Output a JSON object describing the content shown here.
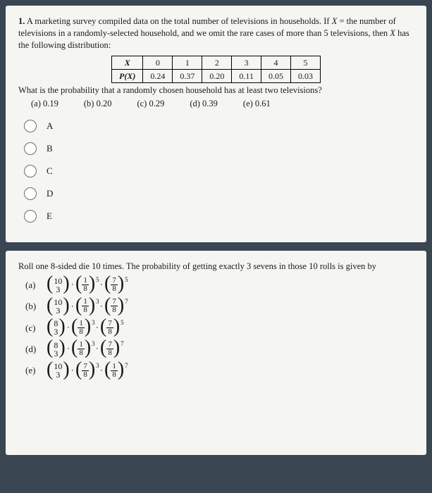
{
  "q1": {
    "number": "1.",
    "prompt_prefix": "A marketing survey compiled data on the total number of televisions in households. If ",
    "var": "X",
    "prompt_mid": " = the number of televisions in a randomly-selected household, and we omit the rare cases of more than 5 televisions, then ",
    "var2": "X",
    "prompt_suffix": " has the following distribution:",
    "table": {
      "row1_label": "X",
      "row2_label": "P(X)",
      "x": [
        "0",
        "1",
        "2",
        "3",
        "4",
        "5"
      ],
      "p": [
        "0.24",
        "0.37",
        "0.20",
        "0.11",
        "0.05",
        "0.03"
      ]
    },
    "subq": "What is the probability that a randomly chosen household has at least two televisions?",
    "answers": [
      {
        "label": "(a)",
        "val": "0.19"
      },
      {
        "label": "(b)",
        "val": "0.20"
      },
      {
        "label": "(c)",
        "val": "0.29"
      },
      {
        "label": "(d)",
        "val": "0.39"
      },
      {
        "label": "(e)",
        "val": "0.61"
      }
    ],
    "radios": [
      "A",
      "B",
      "C",
      "D",
      "E"
    ]
  },
  "q2": {
    "prompt": "Roll one 8-sided die 10 times. The probability of getting exactly 3 sevens in those 10 rolls is given by",
    "options": [
      {
        "label": "(a)",
        "binom_n": "10",
        "binom_k": "3",
        "f1n": "1",
        "f1d": "8",
        "e1": "5",
        "f2n": "7",
        "f2d": "8",
        "e2": "5"
      },
      {
        "label": "(b)",
        "binom_n": "10",
        "binom_k": "3",
        "f1n": "1",
        "f1d": "8",
        "e1": "3",
        "f2n": "7",
        "f2d": "8",
        "e2": "7"
      },
      {
        "label": "(c)",
        "binom_n": "8",
        "binom_k": "3",
        "f1n": "1",
        "f1d": "8",
        "e1": "3",
        "f2n": "7",
        "f2d": "8",
        "e2": "5"
      },
      {
        "label": "(d)",
        "binom_n": "8",
        "binom_k": "3",
        "f1n": "1",
        "f1d": "8",
        "e1": "3",
        "f2n": "7",
        "f2d": "8",
        "e2": "7"
      },
      {
        "label": "(e)",
        "binom_n": "10",
        "binom_k": "3",
        "f1n": "7",
        "f1d": "8",
        "e1": "3",
        "f2n": "1",
        "f2d": "8",
        "e2": "7"
      }
    ]
  }
}
